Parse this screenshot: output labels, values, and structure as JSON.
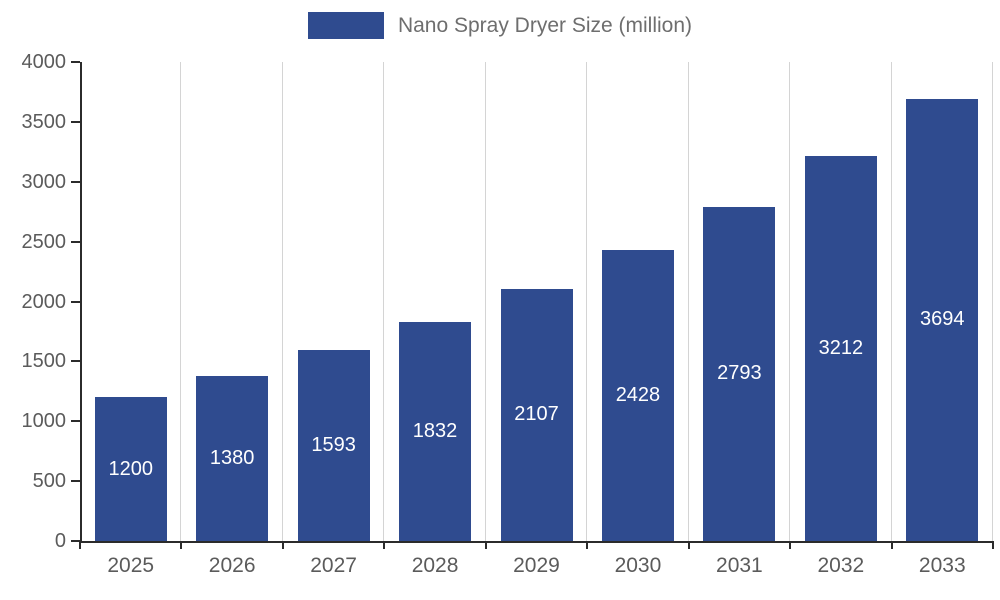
{
  "legend": {
    "label": "Nano Spray Dryer Size (million)",
    "swatch_color": "#2f4b8f"
  },
  "chart_data": {
    "type": "bar",
    "title": "Nano Spray Dryer Size (million)",
    "categories": [
      "2025",
      "2026",
      "2027",
      "2028",
      "2029",
      "2030",
      "2031",
      "2032",
      "2033"
    ],
    "values": [
      1200,
      1380,
      1593,
      1832,
      2107,
      2428,
      2793,
      3212,
      3694
    ],
    "xlabel": "",
    "ylabel": "",
    "ylim": [
      0,
      4000
    ],
    "ytick_step": 500,
    "grid": "vertical",
    "legend_position": "top-center",
    "bar_color": "#2f4b8f",
    "value_label_color": "#ffffff",
    "axis_color": "#2b2b2b",
    "gridline_color": "#d4d4d4",
    "tick_label_color": "#5b5b5b"
  }
}
